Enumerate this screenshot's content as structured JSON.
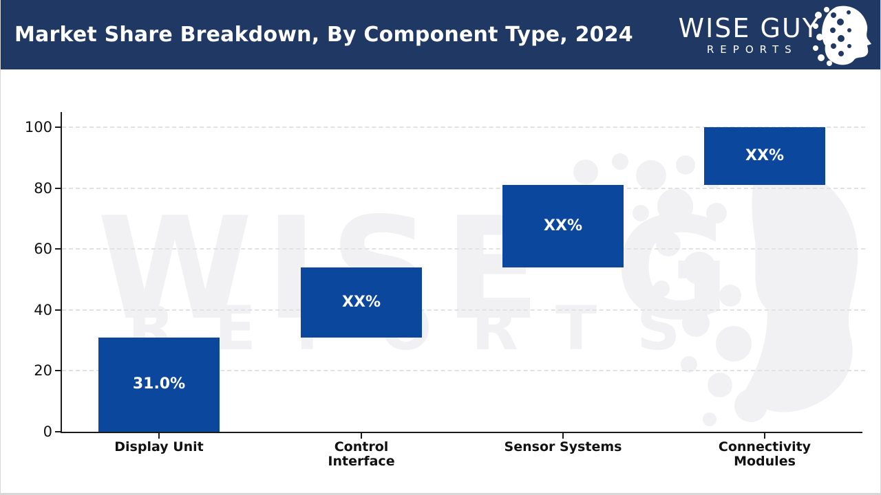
{
  "header": {
    "title": "Market Share Breakdown, By Component Type, 2024",
    "bg_color": "#1f3864",
    "logo": {
      "line1": "WISE GUY",
      "line2": "REPORTS"
    }
  },
  "watermark": {
    "line1": "WISE GU",
    "line2": "R E P O R T S"
  },
  "chart_data": {
    "type": "bar",
    "subtype": "waterfall",
    "title": "Market Share Breakdown, By Component Type, 2024",
    "categories": [
      "Display Unit",
      "Control Interface",
      "Sensor Systems",
      "Connectivity Modules"
    ],
    "segments": [
      {
        "category": "Display Unit",
        "start": 0,
        "end": 31,
        "value": 31.0,
        "label": "31.0%"
      },
      {
        "category": "Control Interface",
        "start": 31,
        "end": 54,
        "value": 23.0,
        "label": "XX%"
      },
      {
        "category": "Sensor Systems",
        "start": 54,
        "end": 81,
        "value": 27.0,
        "label": "XX%"
      },
      {
        "category": "Connectivity Modules",
        "start": 81,
        "end": 100,
        "value": 19.0,
        "label": "XX%"
      }
    ],
    "xlabel": "",
    "ylabel": "",
    "ylim": [
      0,
      105
    ],
    "yticks": [
      0,
      20,
      40,
      60,
      80,
      100
    ],
    "grid": "horizontal-dashed",
    "legend": "none",
    "bar_color": "#0b479d",
    "bar_label_color": "#ffffff",
    "axis_color": "#1a1a1a",
    "gridline_color": "#e2e2e2",
    "watermark_color": "#f1f1f3"
  }
}
